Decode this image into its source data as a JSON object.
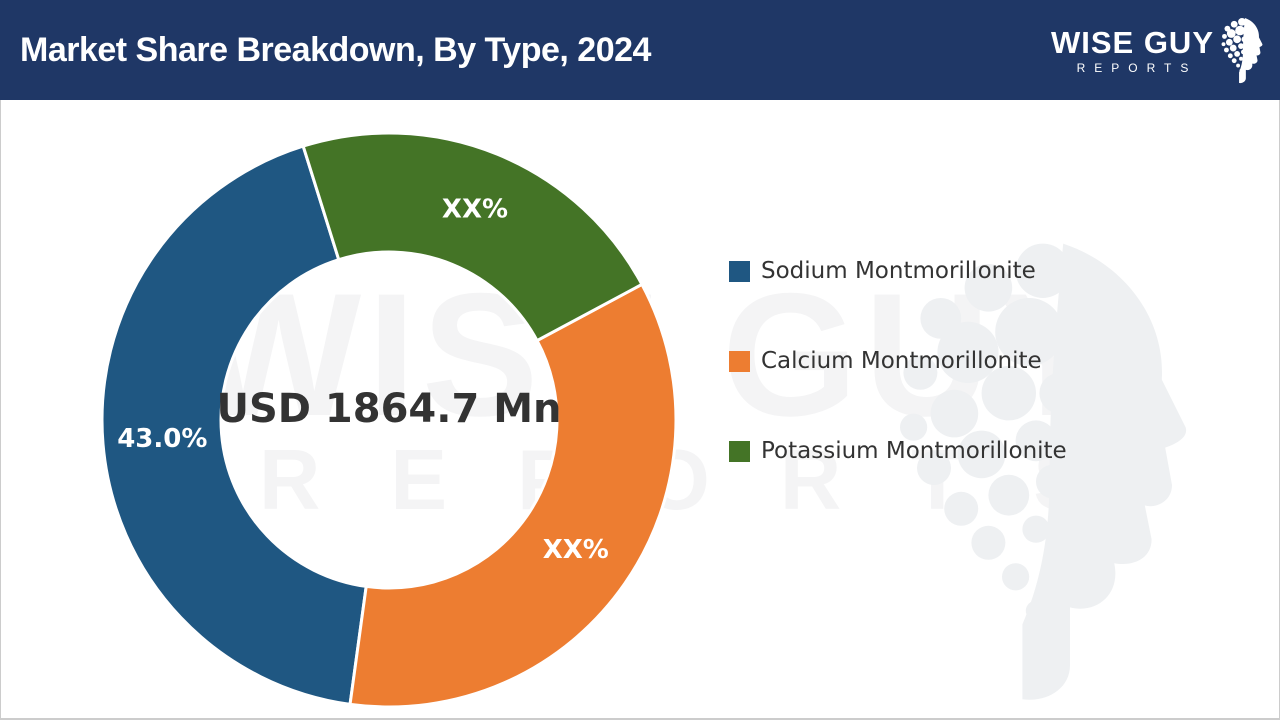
{
  "header": {
    "title": "Market Share Breakdown, By Type, 2024",
    "logo": {
      "line1": "WISE GUY",
      "line2": "REPORTS"
    }
  },
  "watermark": {
    "line1": "WISE GUY",
    "line2": "REPORTS"
  },
  "chart_data": {
    "type": "pie",
    "variant": "donut",
    "title": "Market Share Breakdown, By Type, 2024",
    "center_label": "USD 1864.7 Mn",
    "start_angle_deg": 107.4,
    "direction": "counterclockwise",
    "inner_radius_ratio": 0.585,
    "legend_position": "right",
    "segments": [
      {
        "name": "Sodium Montmorillonite",
        "display_label": "43.0%",
        "value_pct": 43.0,
        "color": "#1F5782"
      },
      {
        "name": "Calcium Montmorillonite",
        "display_label": "XX%",
        "value_pct": 35.0,
        "color": "#ED7D31"
      },
      {
        "name": "Potassium Montmorillonite",
        "display_label": "XX%",
        "value_pct": 22.0,
        "color": "#447426"
      }
    ]
  },
  "colors": {
    "header_bg": "#1F3766",
    "content_border": "#CCCCCC",
    "center_text": "#333333",
    "legend_text": "#333333",
    "slice_label_text": "#FFFFFF",
    "slice_separator": "#FFFFFF",
    "watermark_text": "#F4F4F5",
    "watermark_face": "#EEF0F2",
    "logo_color": "#FFFFFF"
  }
}
